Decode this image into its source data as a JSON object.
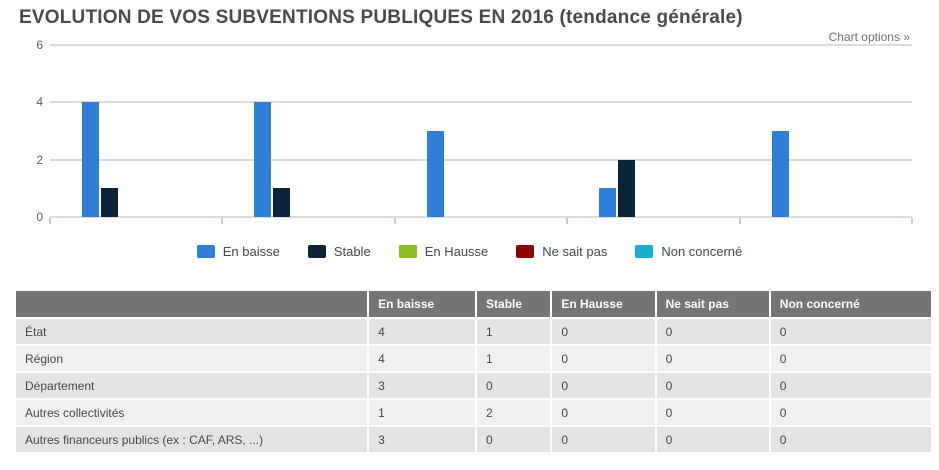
{
  "header": {
    "title": "EVOLUTION DE VOS SUBVENTIONS PUBLIQUES EN 2016 (tendance générale)",
    "chart_options_label": "Chart options »"
  },
  "chart_data": {
    "type": "bar",
    "title": "EVOLUTION DE VOS SUBVENTIONS PUBLIQUES EN 2016 (tendance générale)",
    "categories": [
      "État",
      "Région",
      "Département",
      "Autres collectivités",
      "Autres financeurs publics (ex : CAF, ARS, ...)"
    ],
    "series": [
      {
        "name": "En baisse",
        "color": "#2f7ed8",
        "values": [
          4,
          4,
          3,
          1,
          3
        ]
      },
      {
        "name": "Stable",
        "color": "#0d233a",
        "values": [
          1,
          1,
          0,
          2,
          0
        ]
      },
      {
        "name": "En Hausse",
        "color": "#8bbc21",
        "values": [
          0,
          0,
          0,
          0,
          0
        ]
      },
      {
        "name": "Ne sait pas",
        "color": "#910000",
        "values": [
          0,
          0,
          0,
          0,
          0
        ]
      },
      {
        "name": "Non concerné",
        "color": "#1aadce",
        "values": [
          0,
          0,
          0,
          0,
          0
        ]
      }
    ],
    "xlabel": "",
    "ylabel": "",
    "ylim": [
      0,
      6
    ],
    "yticks": [
      0,
      2,
      4,
      6
    ],
    "grid": true,
    "legend_position": "bottom"
  },
  "table": {
    "columns": [
      "",
      "En baisse",
      "Stable",
      "En Hausse",
      "Ne sait pas",
      "Non concerné"
    ],
    "rows": [
      {
        "label": "État",
        "values": [
          "4",
          "1",
          "0",
          "0",
          "0"
        ]
      },
      {
        "label": "Région",
        "values": [
          "4",
          "1",
          "0",
          "0",
          "0"
        ]
      },
      {
        "label": "Département",
        "values": [
          "3",
          "0",
          "0",
          "0",
          "0"
        ]
      },
      {
        "label": "Autres collectivités",
        "values": [
          "1",
          "2",
          "0",
          "0",
          "0"
        ]
      },
      {
        "label": "Autres financeurs publics (ex : CAF, ARS, ...)",
        "values": [
          "3",
          "0",
          "0",
          "0",
          "0"
        ]
      }
    ]
  }
}
